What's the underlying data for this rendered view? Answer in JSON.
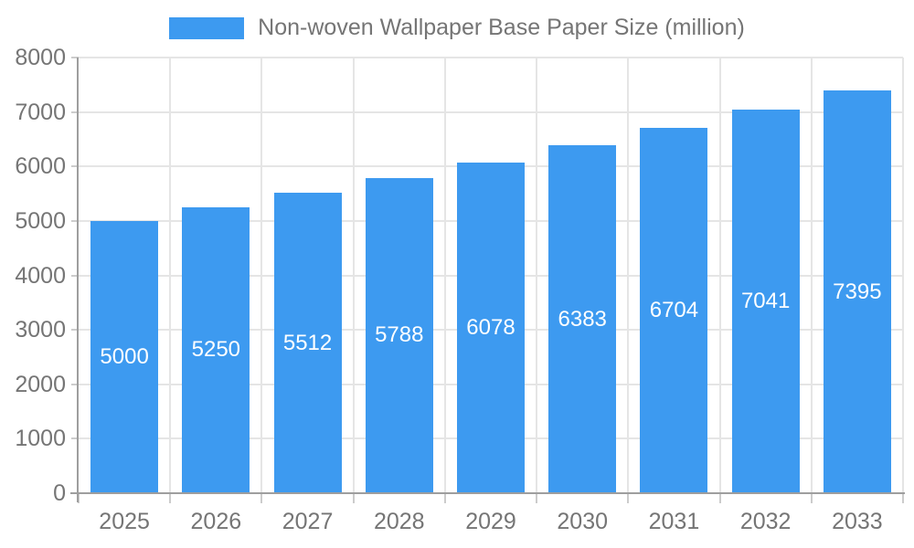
{
  "chart": {
    "legend": {
      "label": "Non-woven Wallpaper Base Paper Size (million)"
    },
    "colors": {
      "bar": "#3d9af0",
      "axis_label": "#757575",
      "value_label": "#ffffff",
      "gridline": "#e5e5e5",
      "axis_line": "#9e9e9e",
      "tick": "#cccccc",
      "background": "#ffffff"
    }
  },
  "chart_data": {
    "type": "bar",
    "title": "Non-woven Wallpaper Base Paper Size (million)",
    "categories": [
      "2025",
      "2026",
      "2027",
      "2028",
      "2029",
      "2030",
      "2031",
      "2032",
      "2033"
    ],
    "values": [
      5000,
      5250,
      5512,
      5788,
      6078,
      6383,
      6704,
      7041,
      7395
    ],
    "xlabel": "",
    "ylabel": "",
    "ylim": [
      0,
      8000
    ],
    "yticks": [
      0,
      1000,
      2000,
      3000,
      4000,
      5000,
      6000,
      7000,
      8000
    ],
    "grid": true,
    "legend_position": "top",
    "value_label_position": "inside-center"
  }
}
